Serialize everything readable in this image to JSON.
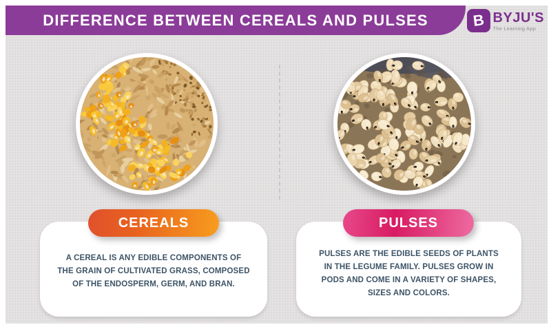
{
  "header": {
    "title": "DIFFERENCE BETWEEN CEREALS AND PULSES"
  },
  "logo": {
    "brand": "BYJU'S",
    "tagline": "The Learning App",
    "icon_letter": "B"
  },
  "columns": [
    {
      "id": "cereals",
      "badge_label": "CEREALS",
      "photo": "mixed cereal grains - corn, wheat and millet",
      "description_lines": [
        "A CEREAL IS ANY EDIBLE COMPONENTS OF",
        "THE GRAIN OF CULTIVATED GRASS, COMPOSED",
        "OF THE ENDOSPERM, GERM, AND BRAN."
      ]
    },
    {
      "id": "pulses",
      "badge_label": "PULSES",
      "photo": "black-eyed peas legume seeds",
      "description_lines": [
        "PULSES ARE THE EDIBLE SEEDS OF PLANTS",
        "IN THE LEGUME FAMILY. PULSES GROW IN",
        "PODS AND COME IN A VARIETY OF SHAPES,",
        "SIZES AND COLORS."
      ]
    }
  ],
  "colors": {
    "header_bg": "#8b3c98",
    "brand_purple": "#7b2f8d",
    "background_gray": "#e4e2e2",
    "card_text": "#3d5366",
    "cereals_gradient": [
      "#e0512d",
      "#f89d1e"
    ],
    "pulses_gradient": [
      "#d81b62",
      "#ee6ba1"
    ]
  }
}
